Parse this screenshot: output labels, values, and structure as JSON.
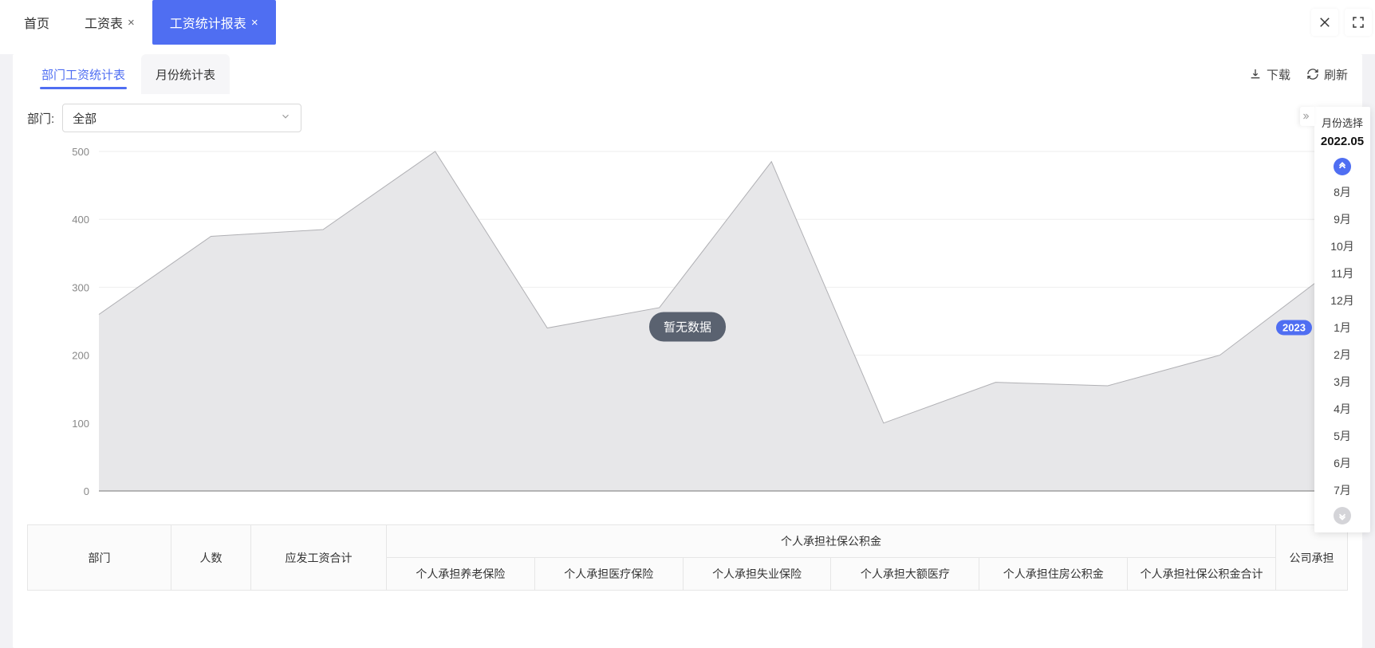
{
  "topTabs": {
    "items": [
      {
        "label": "首页",
        "closable": false
      },
      {
        "label": "工资表",
        "closable": true
      },
      {
        "label": "工资统计报表",
        "closable": true
      }
    ],
    "activeIndex": 2
  },
  "subtabs": {
    "items": [
      {
        "label": "部门工资统计表"
      },
      {
        "label": "月份统计表"
      }
    ],
    "activeIndex": 0
  },
  "actions": {
    "download": "下载",
    "refresh": "刷新"
  },
  "filter": {
    "label": "部门:",
    "value": "全部"
  },
  "chart": {
    "type": "area",
    "tooltip": "暂无数据",
    "fill_color": "#e7e7e9",
    "line_color": "#b0b0b4",
    "grid_color": "#eeeeee",
    "axis_color": "#777777",
    "background_color": "#ffffff",
    "ylim": [
      0,
      500
    ],
    "ytick_step": 100,
    "yticks": [
      0,
      100,
      200,
      300,
      400,
      500
    ],
    "values": [
      260,
      375,
      385,
      500,
      240,
      270,
      485,
      100,
      160,
      155,
      200,
      325
    ],
    "label_fontsize": 13,
    "label_color": "#888888"
  },
  "table": {
    "group_header": "个人承担社保公积金",
    "columns_left": [
      "部门",
      "人数",
      "应发工资合计"
    ],
    "columns_sub": [
      "个人承担养老保险",
      "个人承担医疗保险",
      "个人承担失业保险",
      "个人承担大额医疗",
      "个人承担住房公积金",
      "个人承担社保公积金合计",
      "公司承担"
    ]
  },
  "monthPanel": {
    "title": "月份选择",
    "current": "2022.05",
    "yearBadge": "2023",
    "items": [
      "8月",
      "9月",
      "10月",
      "11月",
      "12月",
      "1月",
      "2月",
      "3月",
      "4月",
      "5月",
      "6月",
      "7月"
    ],
    "yearBadgeIndex": 5
  }
}
